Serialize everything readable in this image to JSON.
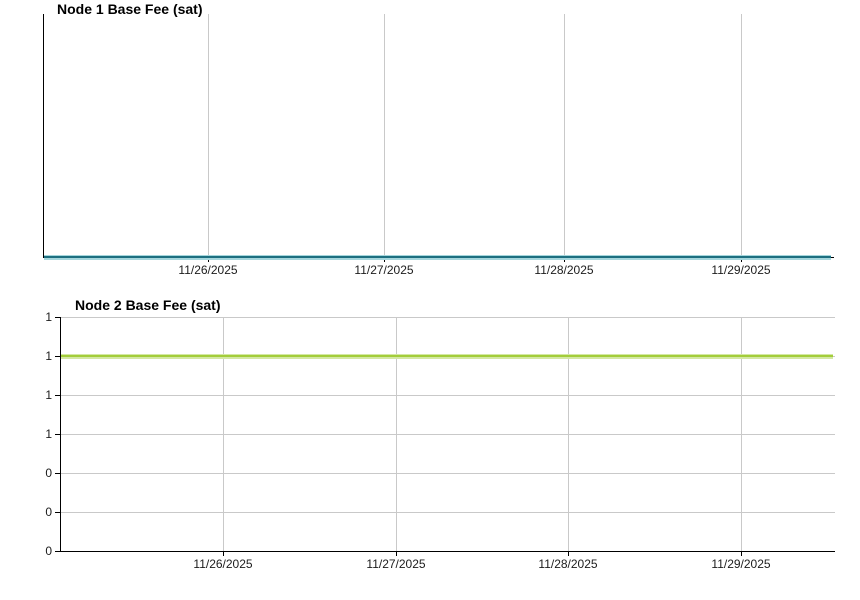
{
  "page": {
    "background": "#ffffff"
  },
  "colors": {
    "axis": "#000000",
    "grid": "#c9c9c9",
    "label": "#1c1c1c"
  },
  "chart_data": [
    {
      "type": "line",
      "title": "Node 1 Base Fee (sat)",
      "xlabel": "",
      "ylabel": "",
      "x_tick_labels": [
        "11/26/2025",
        "11/27/2025",
        "11/28/2025",
        "11/29/2025"
      ],
      "y_tick_labels": [],
      "ylim": [
        0,
        1
      ],
      "grid": "vertical",
      "legend": "none",
      "series": [
        {
          "name": "Node 1 Base Fee",
          "constant_value": 0,
          "color": "#1d6f80",
          "halo": "#a5d6dc",
          "note": "flat line at 0 sat across entire date range"
        }
      ]
    },
    {
      "type": "line",
      "title": "Node 2 Base Fee (sat)",
      "xlabel": "",
      "ylabel": "",
      "x_tick_labels": [
        "11/26/2025",
        "11/27/2025",
        "11/28/2025",
        "11/29/2025"
      ],
      "y_tick_labels": [
        "1",
        "1",
        "1",
        "1",
        "0",
        "0",
        "0"
      ],
      "y_ticks_underlying": [
        1.2,
        1.0,
        0.8,
        0.6,
        0.4,
        0.2,
        0
      ],
      "ylim": [
        0,
        1.2
      ],
      "grid": "both",
      "legend": "none",
      "series": [
        {
          "name": "Node 2 Base Fee",
          "constant_value": 1,
          "color": "#a3cd3a",
          "halo": "#d4e8a4",
          "note": "flat line at 1 sat across entire date range"
        }
      ]
    }
  ]
}
